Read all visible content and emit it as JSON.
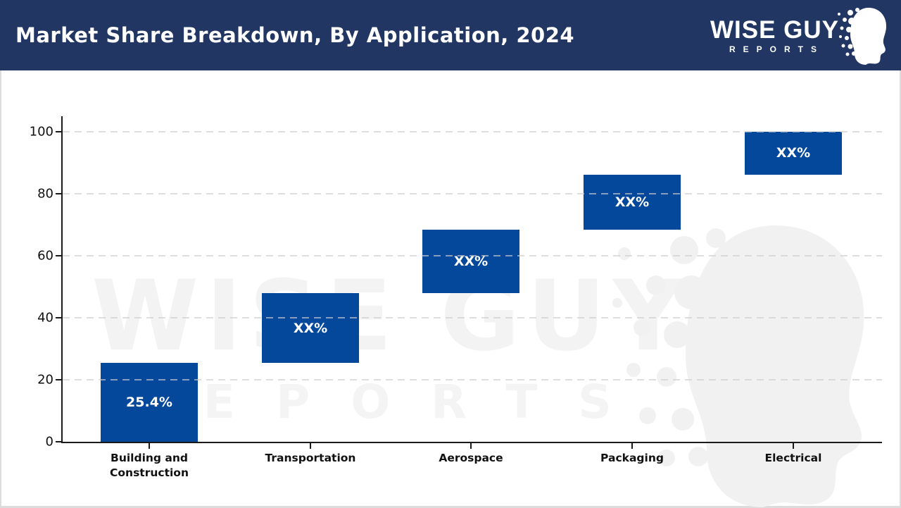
{
  "header": {
    "title": "Market Share Breakdown, By Application, 2024",
    "logo": {
      "line1": "WISE GUY",
      "line2": "REPORTS"
    }
  },
  "watermark": {
    "line1": "WISE GUY",
    "line2": "REPORTS"
  },
  "colors": {
    "header_bg": "#213663",
    "bar": "#04489c",
    "grid": "#d3d3d3",
    "axis": "#1a1a1a",
    "bar_label": "#ffffff",
    "watermark": "#f3f3f3"
  },
  "chart_data": {
    "type": "bar",
    "subtype": "waterfall",
    "title": "Market Share Breakdown, By Application, 2024",
    "categories": [
      "Building and Construction",
      "Transportation",
      "Aerospace",
      "Packaging",
      "Electrical"
    ],
    "segments": [
      {
        "category": "Building and Construction",
        "start": 0,
        "end": 25.4,
        "label": "25.4%"
      },
      {
        "category": "Transportation",
        "start": 25.4,
        "end": 48,
        "label": "XX%"
      },
      {
        "category": "Aerospace",
        "start": 48,
        "end": 68.5,
        "label": "XX%"
      },
      {
        "category": "Packaging",
        "start": 68.5,
        "end": 86.2,
        "label": "XX%"
      },
      {
        "category": "Electrical",
        "start": 86.2,
        "end": 100,
        "label": "XX%"
      }
    ],
    "xlabel": "",
    "ylabel": "",
    "ylim": [
      0,
      100
    ],
    "yticks": [
      0,
      20,
      40,
      60,
      80,
      100
    ],
    "grid": "horizontal-dashed",
    "legend": "none"
  }
}
